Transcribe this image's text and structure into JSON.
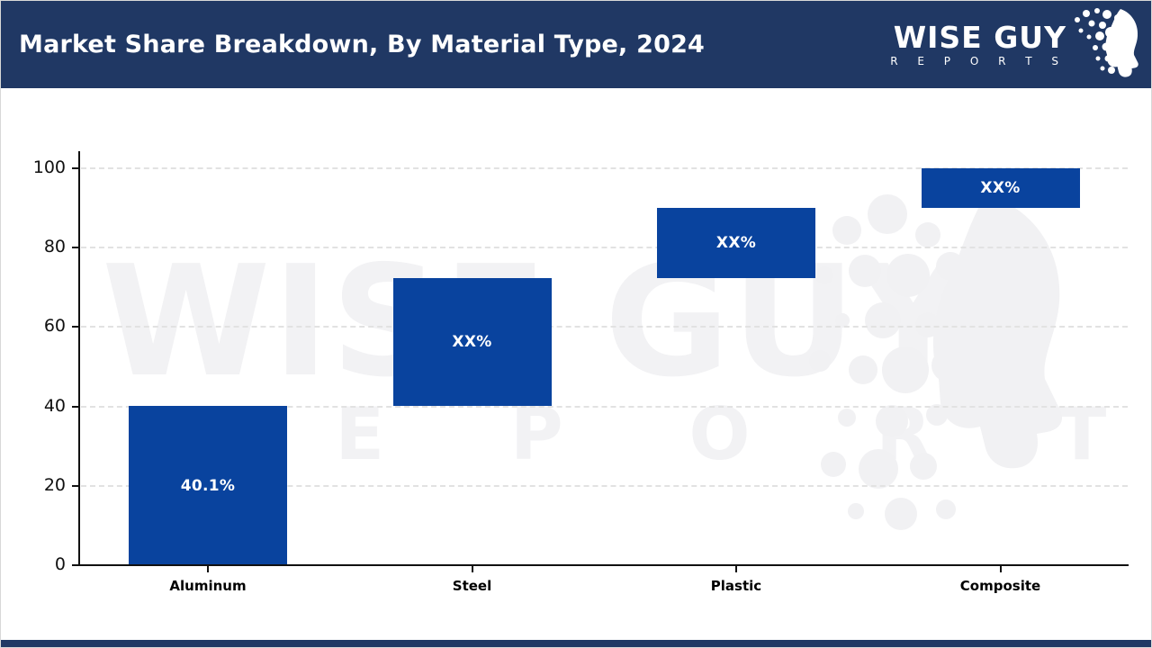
{
  "header": {
    "title": "Market Share Breakdown, By Material Type, 2024",
    "bg_color": "#203864"
  },
  "logo": {
    "line1": "WISE GUY",
    "line2": "R E P O R T S"
  },
  "watermark": {
    "line1": "WISE GUY",
    "line2": "R E P O R T S"
  },
  "chart_data": {
    "type": "bar",
    "subtype": "waterfall-breakdown",
    "title": "Market Share Breakdown, By Material Type, 2024",
    "categories": [
      "Aluminum",
      "Steel",
      "Plastic",
      "Composite"
    ],
    "segments": [
      {
        "category": "Aluminum",
        "start": 0,
        "end": 40.1,
        "label": "40.1%"
      },
      {
        "category": "Steel",
        "start": 40.1,
        "end": 72.3,
        "label": "XX%"
      },
      {
        "category": "Plastic",
        "start": 72.3,
        "end": 90.1,
        "label": "XX%"
      },
      {
        "category": "Composite",
        "start": 90.1,
        "end": 100,
        "label": "XX%"
      }
    ],
    "yticks": [
      0,
      20,
      40,
      60,
      80,
      100
    ],
    "ylim": [
      0,
      104
    ],
    "xlabel": "",
    "ylabel": "",
    "grid": "horizontal-dashed",
    "legend": "none",
    "bar_color": "#09439e",
    "grid_color": "#e2e2e2",
    "axis_color": "#111111"
  }
}
